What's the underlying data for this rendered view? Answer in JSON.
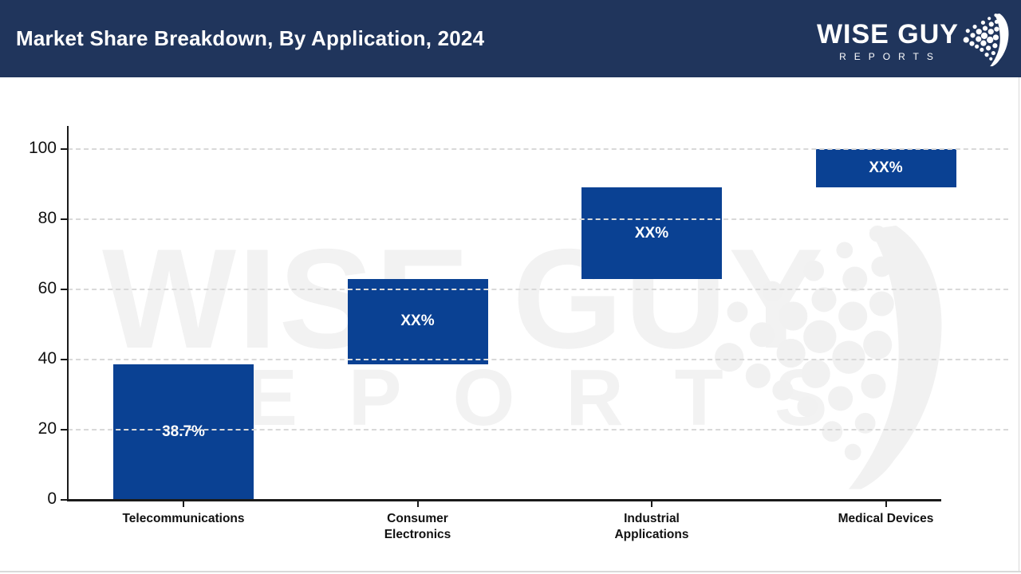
{
  "header": {
    "title": "Market Share Breakdown, By Application, 2024",
    "logo": {
      "line1": "WISE GUY",
      "line2": "REPORTS"
    }
  },
  "watermark": {
    "line1": "WISE GUY",
    "line2": "REPORTS"
  },
  "chart_data": {
    "type": "bar",
    "subtype": "waterfall",
    "title": "Market Share Breakdown, By Application, 2024",
    "categories": [
      "Telecommunications",
      "Consumer\nElectronics",
      "Industrial\nApplications",
      "Medical Devices"
    ],
    "segments": [
      {
        "category": "Telecommunications",
        "start": 0,
        "end": 38.7,
        "label": "38.7%"
      },
      {
        "category": "Consumer Electronics",
        "start": 38.7,
        "end": 63,
        "label": "XX%"
      },
      {
        "category": "Industrial Applications",
        "start": 63,
        "end": 89,
        "label": "XX%"
      },
      {
        "category": "Medical Devices",
        "start": 89,
        "end": 100,
        "label": "XX%"
      }
    ],
    "ylim": [
      0,
      100
    ],
    "yticks": [
      0,
      20,
      40,
      60,
      80,
      100
    ],
    "grid": "horizontal-dashed",
    "legend": "none",
    "colors": {
      "bar": "#0a4193",
      "bar_label": "#ffffff",
      "header_bg": "#20355c",
      "grid": "#d9d9d9",
      "axis": "#1a1a1a",
      "watermark": "#f2f2f2"
    }
  }
}
